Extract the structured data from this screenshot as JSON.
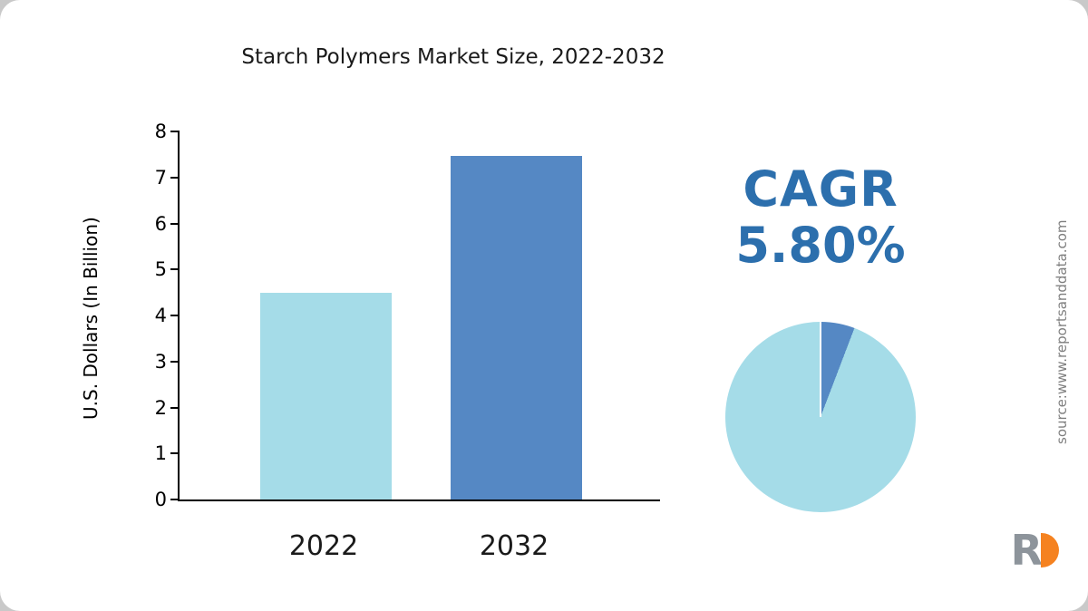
{
  "title": "Starch Polymers Market Size, 2022-2032",
  "chart_data": {
    "type": "bar",
    "title": "Starch Polymers Market Size, 2022-2032",
    "categories": [
      "2022",
      "2032"
    ],
    "values": [
      4.5,
      7.47
    ],
    "xlabel": "",
    "ylabel": "U.S. Dollars (In Billion)",
    "ylim": [
      0,
      8
    ],
    "yticks": [
      0,
      1,
      2,
      3,
      4,
      5,
      6,
      7,
      8
    ],
    "bar_colors": [
      "#a5dce8",
      "#5588c4"
    ],
    "grid": false,
    "legend": "none"
  },
  "cagr": {
    "label": "CAGR",
    "value": "5.80%",
    "percent": 5.8,
    "color": "#2c6fad"
  },
  "pie": {
    "slice_percent": 5.8,
    "slice_color": "#5588c4",
    "rest_color": "#a5dce8"
  },
  "source": "source:www.reportsanddata.com",
  "logo": {
    "letter": "R",
    "d_color": "#f58220"
  }
}
